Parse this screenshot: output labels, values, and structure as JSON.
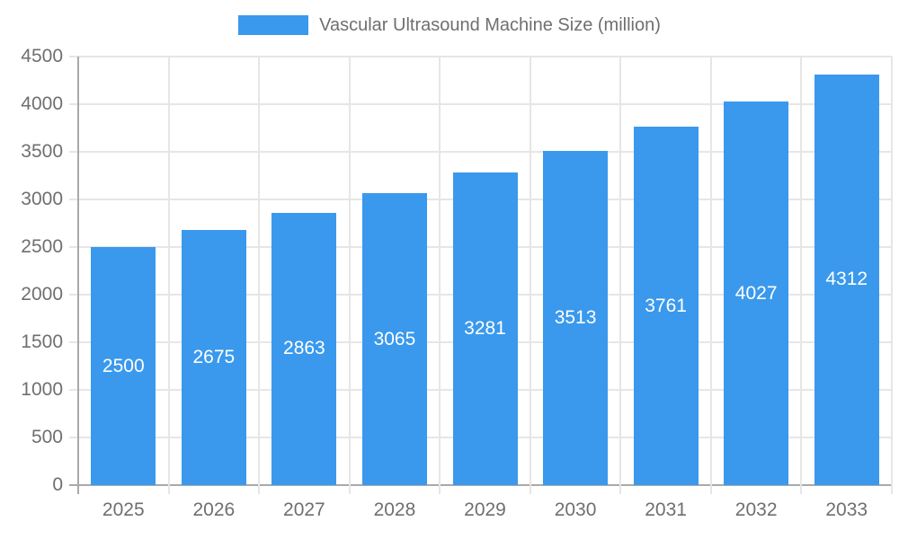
{
  "chart_data": {
    "type": "bar",
    "title": "Vascular Ultrasound Machine Size (million)",
    "categories": [
      "2025",
      "2026",
      "2027",
      "2028",
      "2029",
      "2030",
      "2031",
      "2032",
      "2033"
    ],
    "values": [
      2500,
      2675,
      2863,
      3065,
      3281,
      3513,
      3761,
      4027,
      4312
    ],
    "ylim": [
      0,
      4500
    ],
    "ytick_step": 500,
    "y_ticks": [
      0,
      500,
      1000,
      1500,
      2000,
      2500,
      3000,
      3500,
      4000,
      4500
    ],
    "grid": true,
    "legend_position": "top",
    "bar_labels_visible": true
  },
  "colors": {
    "bar": "#3A99EC",
    "bar_label": "#FFFFFF",
    "axis_text": "#6F6F6F",
    "legend_text": "#6F6F6F",
    "gridline": "#E6E6E6",
    "axis_line": "#A9A9A9",
    "background": "#FFFFFF"
  }
}
